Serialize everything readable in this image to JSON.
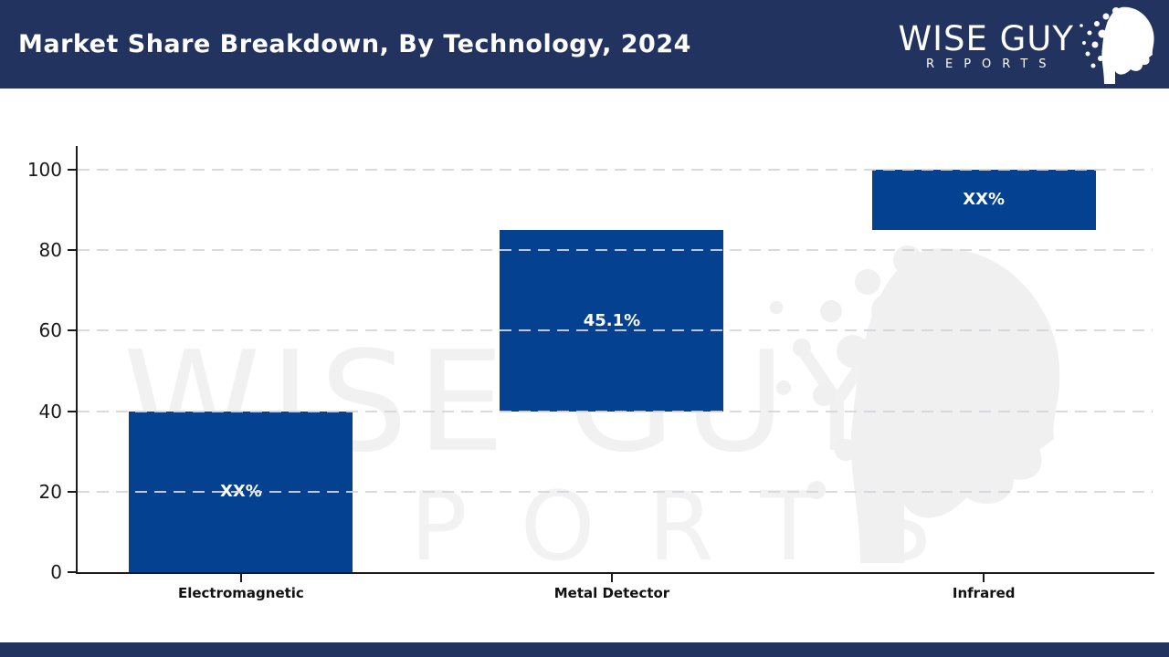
{
  "header": {
    "title": "Market Share Breakdown, By Technology, 2024",
    "logo": {
      "line1": "WISE GUY",
      "line2": "REPORTS"
    }
  },
  "watermark": {
    "line1": "WISE GUY",
    "line2": "REPORTS"
  },
  "chart_data": {
    "type": "bar",
    "subtype": "waterfall-floating-bars",
    "title": "Market Share Breakdown, By Technology, 2024",
    "categories": [
      "Electromagnetic",
      "Metal Detector",
      "Infrared"
    ],
    "segments": [
      {
        "category": "Electromagnetic",
        "start": 0,
        "end": 40,
        "label": "XX%"
      },
      {
        "category": "Metal Detector",
        "start": 40,
        "end": 85.1,
        "label": "45.1%"
      },
      {
        "category": "Infrared",
        "start": 85.1,
        "end": 100,
        "label": "XX%"
      }
    ],
    "xlabel": "",
    "ylabel": "",
    "yticks": [
      0,
      20,
      40,
      60,
      80,
      100
    ],
    "ylim": [
      0,
      100
    ],
    "grid": "horizontal-dashed",
    "legend": "none"
  },
  "colors": {
    "header_bg": "#21335e",
    "footer_bg": "#21335e",
    "bar": "#054191",
    "bar_label": "#ffffff",
    "axis": "#1a1a1a",
    "grid": "#d3d6db",
    "watermark": "#f1f1f1"
  }
}
